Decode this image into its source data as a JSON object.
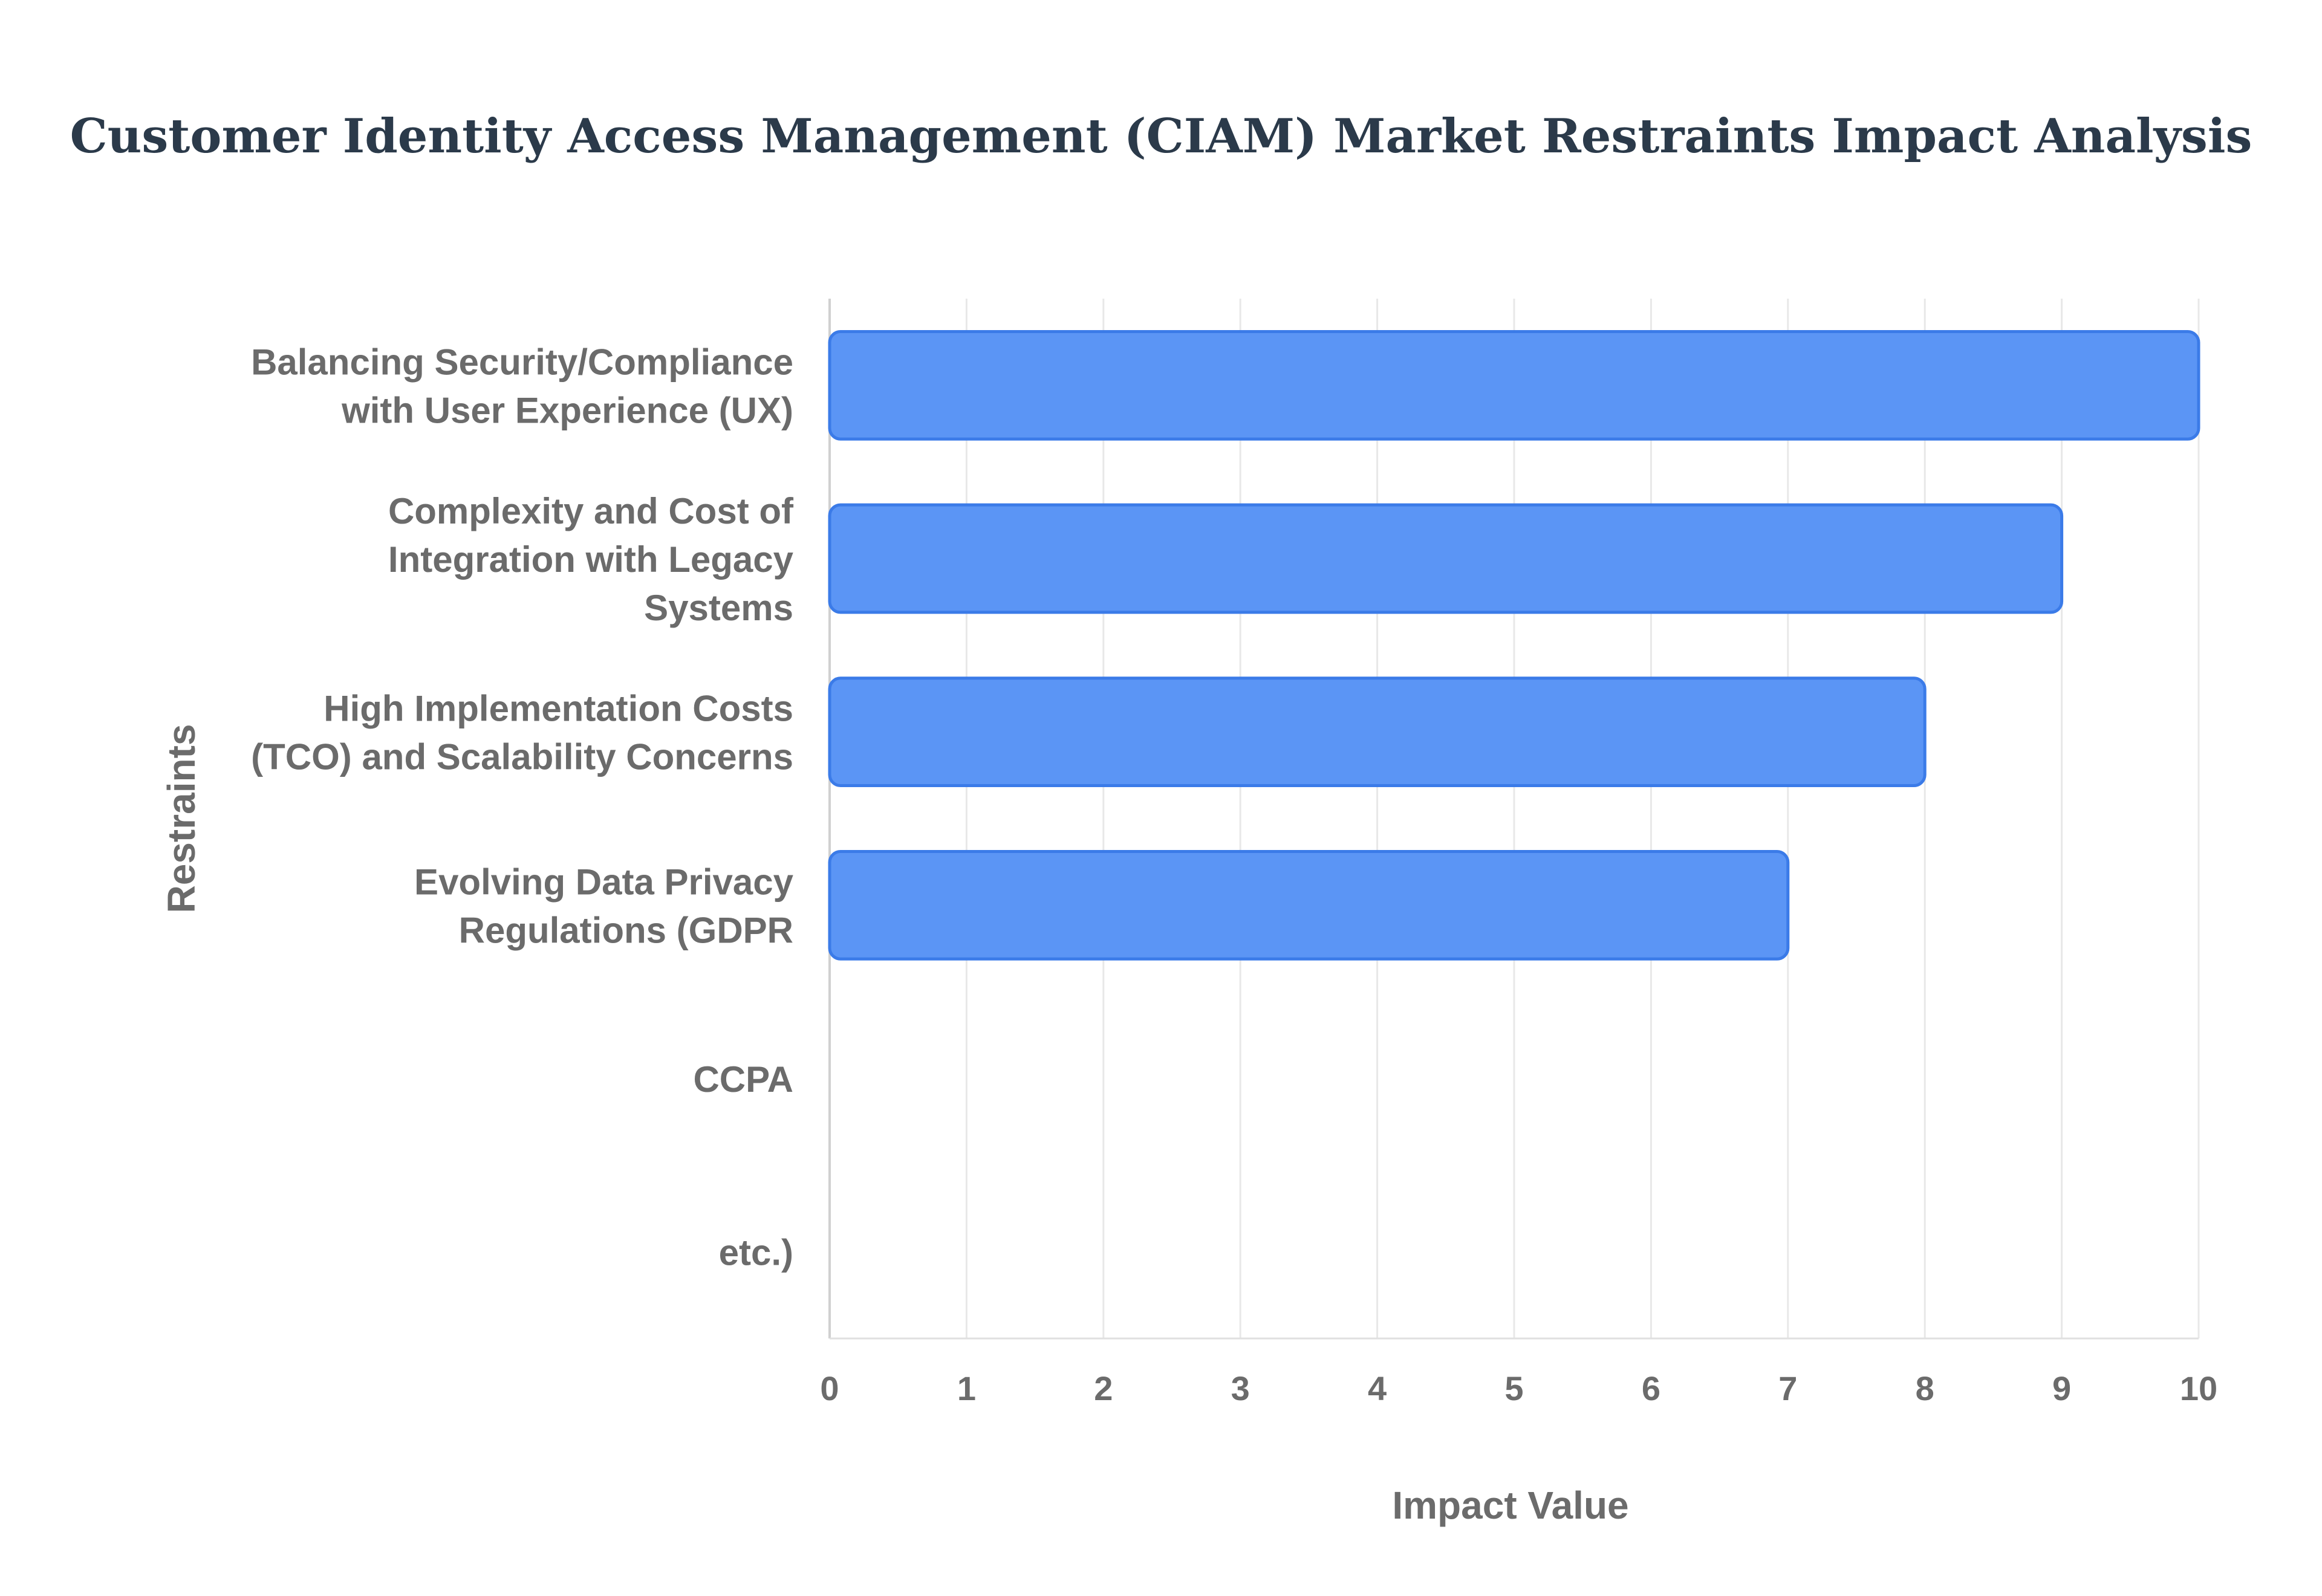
{
  "chart_data": {
    "type": "bar",
    "orientation": "horizontal",
    "title": "Customer Identity Access Management (CIAM) Market Restraints Impact Analysis",
    "xlabel": "Impact Value",
    "ylabel": "Restraints",
    "xlim": [
      0,
      10
    ],
    "xticks": [
      0,
      1,
      2,
      3,
      4,
      5,
      6,
      7,
      8,
      9,
      10
    ],
    "grid": true,
    "bar_color": "#5b95f5",
    "bar_edge_color": "#3b7be8",
    "categories": [
      [
        "Balancing Security/Compliance",
        "with User Experience (UX)"
      ],
      [
        "Complexity and Cost of",
        "Integration with Legacy",
        "Systems"
      ],
      [
        "High Implementation Costs",
        "(TCO) and Scalability Concerns"
      ],
      [
        "Evolving Data Privacy",
        "Regulations (GDPR"
      ],
      [
        "CCPA"
      ],
      [
        "etc.)"
      ]
    ],
    "values": [
      10,
      9,
      8,
      7,
      null,
      null
    ]
  }
}
